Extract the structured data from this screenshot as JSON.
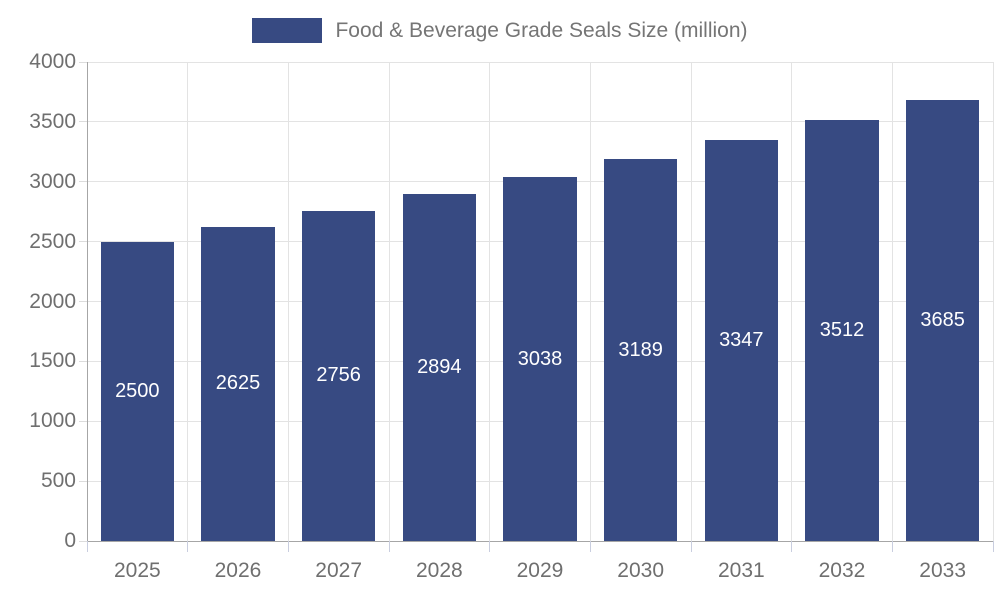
{
  "chart_data": {
    "type": "bar",
    "title": "",
    "legend": "Food & Beverage Grade Seals Size (million)",
    "legend_position": "top-center",
    "categories": [
      "2025",
      "2026",
      "2027",
      "2028",
      "2029",
      "2030",
      "2031",
      "2032",
      "2033"
    ],
    "values": [
      2500,
      2625,
      2756,
      2894,
      3038,
      3189,
      3347,
      3512,
      3685
    ],
    "xlabel": "",
    "ylabel": "",
    "ylim": [
      0,
      4000
    ],
    "ytick_step": 500,
    "yticks": [
      0,
      500,
      1000,
      1500,
      2000,
      2500,
      3000,
      3500,
      4000
    ],
    "grid": true,
    "colors": {
      "bar": "#374A82",
      "grid": "#E3E3E3",
      "axis": "#A6A6A6",
      "x_tick": "#C9CEDF",
      "y_tick": "#DCDCDC",
      "tick_label": "#6F6F6F",
      "legend_text": "#757575",
      "value_label": "#FFFFFF",
      "background": "#FFFFFF"
    }
  }
}
